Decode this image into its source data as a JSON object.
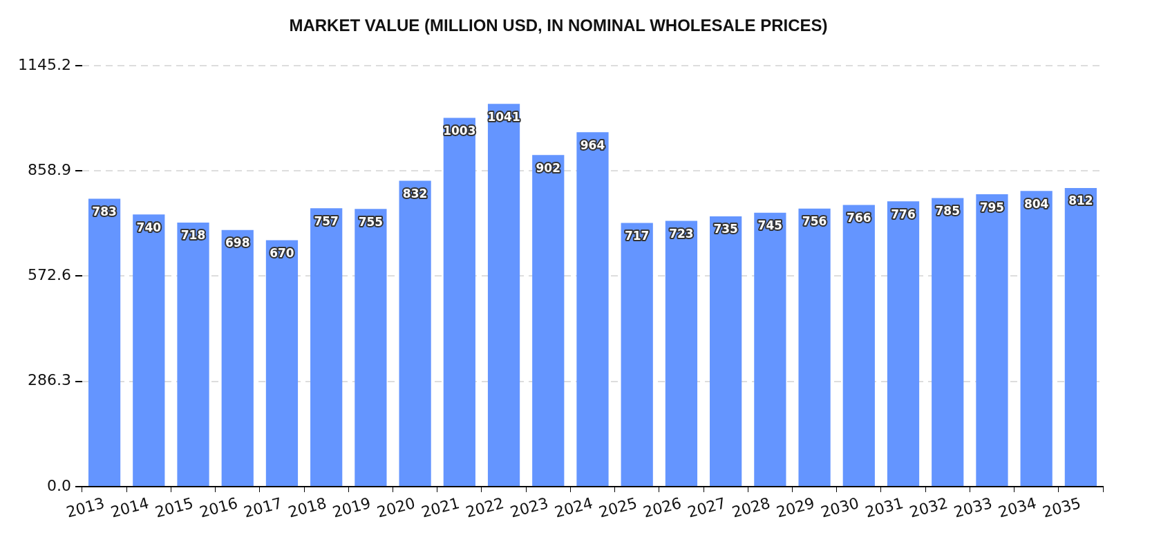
{
  "chart_data": {
    "type": "bar",
    "title": "MARKET VALUE (MILLION USD, IN NOMINAL WHOLESALE PRICES)",
    "categories": [
      "2013",
      "2014",
      "2015",
      "2016",
      "2017",
      "2018",
      "2019",
      "2020",
      "2021",
      "2022",
      "2023",
      "2024",
      "2025",
      "2026",
      "2027",
      "2028",
      "2029",
      "2030",
      "2031",
      "2032",
      "2033",
      "2034",
      "2035"
    ],
    "values": [
      783,
      740,
      718,
      698,
      670,
      757,
      755,
      832,
      1003,
      1041,
      902,
      964,
      717,
      723,
      735,
      745,
      756,
      766,
      776,
      785,
      795,
      804,
      812
    ],
    "color": "#6495ff",
    "ylim": [
      0,
      1145.2
    ],
    "yticks": [
      {
        "value": 0,
        "label": "0.0"
      },
      286.3,
      572.6,
      858.9,
      1145.2
    ],
    "grid": "y",
    "legend": false,
    "data_labels": true
  }
}
